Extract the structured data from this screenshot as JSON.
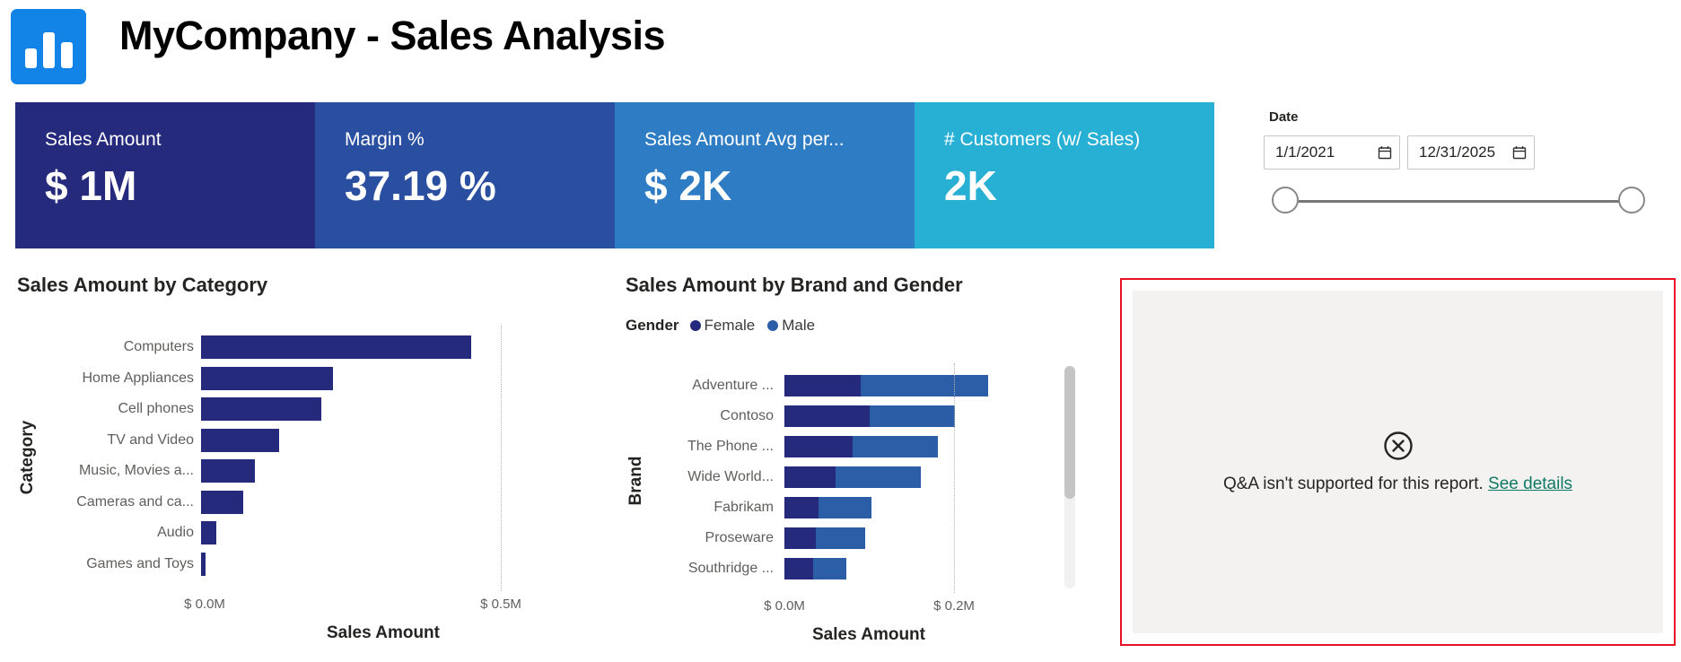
{
  "header": {
    "title": "MyCompany - Sales Analysis"
  },
  "kpi_cards": [
    {
      "label": "Sales Amount",
      "value": "$ 1M",
      "bg": "#262A7C"
    },
    {
      "label": "Margin %",
      "value": "37.19 %",
      "bg": "#2B4FA0"
    },
    {
      "label": "Sales Amount Avg per...",
      "value": "$ 2K",
      "bg": "#2E7CC3"
    },
    {
      "label": "# Customers (w/ Sales)",
      "value": "2K",
      "bg": "#27AFD4"
    }
  ],
  "date_slicer": {
    "label": "Date",
    "start_date": "1/1/2021",
    "end_date": "12/31/2025"
  },
  "chart_data": [
    {
      "type": "bar",
      "orientation": "horizontal",
      "title": "Sales Amount by Category",
      "xlabel": "Sales Amount",
      "ylabel": "Category",
      "categories": [
        "Computers",
        "Home Appliances",
        "Cell phones",
        "TV and Video",
        "Music, Movies a...",
        "Cameras and ca...",
        "Audio",
        "Games and Toys"
      ],
      "values_M": [
        0.45,
        0.22,
        0.2,
        0.13,
        0.09,
        0.07,
        0.025,
        0.008
      ],
      "x_ticks": [
        "$ 0.0M",
        "$ 0.5M"
      ],
      "xlim_M": [
        0,
        0.6
      ],
      "bar_color": "#252A7C",
      "grid": "dotted at 0.5M"
    },
    {
      "type": "bar",
      "orientation": "horizontal",
      "stacked": true,
      "title": "Sales Amount by Brand and Gender",
      "legend_title": "Gender",
      "legend_position": "top",
      "xlabel": "Sales Amount",
      "ylabel": "Brand",
      "categories": [
        "Adventure ...",
        "Contoso",
        "The Phone ...",
        "Wide World...",
        "Fabrikam",
        "Proseware",
        "Southridge ..."
      ],
      "series": [
        {
          "name": "Female",
          "color": "#252A7C",
          "values_M": [
            0.09,
            0.1,
            0.08,
            0.06,
            0.04,
            0.037,
            0.034
          ]
        },
        {
          "name": "Male",
          "color": "#2C5EA8",
          "values_M": [
            0.15,
            0.1,
            0.1,
            0.1,
            0.062,
            0.058,
            0.039
          ]
        }
      ],
      "x_ticks": [
        "$ 0.0M",
        "$ 0.2M"
      ],
      "xlim_M": [
        0,
        0.25
      ],
      "grid": "dotted at 0.2M"
    }
  ],
  "qna": {
    "message": "Q&A isn't supported for this report.",
    "link": "See details",
    "border_color": "#E81123",
    "link_color": "#117865"
  }
}
